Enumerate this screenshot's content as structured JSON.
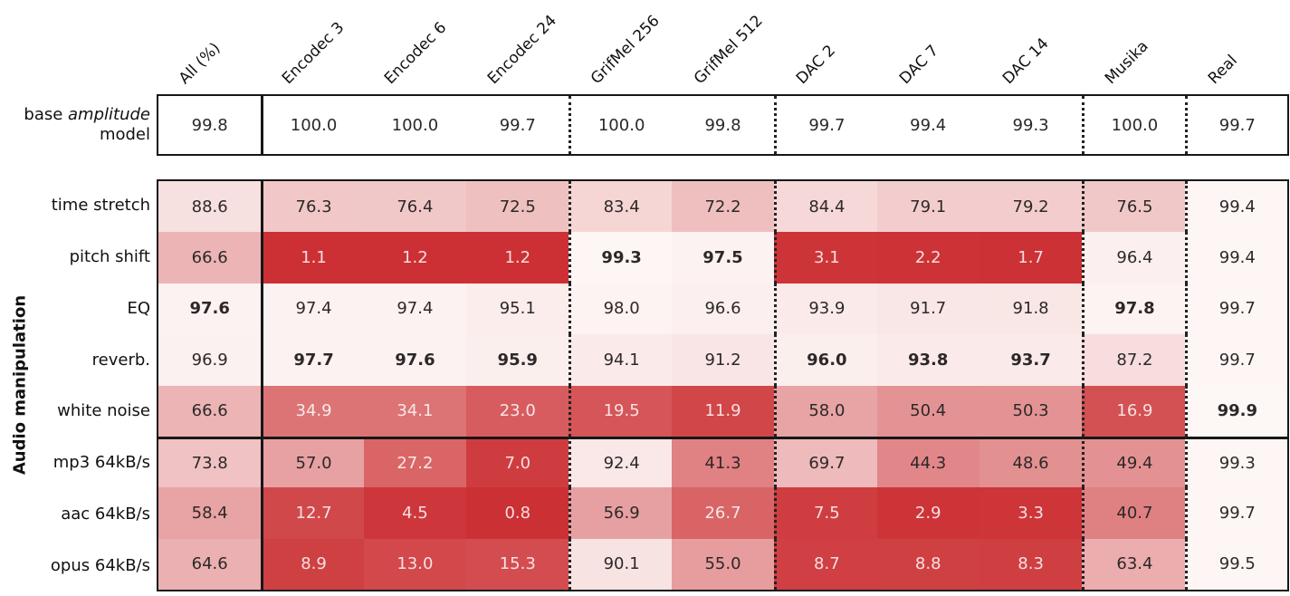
{
  "labels": {
    "base_line1_normal": "base ",
    "base_line1_italic": "amplitude",
    "base_line2": "model",
    "ylabel": "Audio manipulation"
  },
  "colors": {
    "cmap_high": "#fdf7f6",
    "cmap_low": "#cb2e32",
    "border": "#171717",
    "text_dark": "#2d2828",
    "text_light": "rgba(255,255,255,0.84)"
  },
  "chart_data": {
    "type": "heatmap",
    "title": "",
    "xlabel": "",
    "ylabel": "Audio manipulation",
    "value_range": [
      0,
      100
    ],
    "legend": "none",
    "columns": [
      "All (%)",
      "Encodec 3",
      "Encodec 6",
      "Encodec 24",
      "GrifMel 256",
      "GrifMel 512",
      "DAC 2",
      "DAC 7",
      "DAC 14",
      "Musika",
      "Real"
    ],
    "solid_before_cols": [
      1
    ],
    "dotted_before_cols": [
      4,
      6,
      9,
      10
    ],
    "hline_before_row": 5,
    "base_model": {
      "label": "base amplitude model",
      "values": [
        99.8,
        100.0,
        100.0,
        99.7,
        100.0,
        99.8,
        99.7,
        99.4,
        99.3,
        100.0,
        99.7
      ],
      "bold_cols": []
    },
    "rows": [
      {
        "label": "time stretch",
        "values": [
          88.6,
          76.3,
          76.4,
          72.5,
          83.4,
          72.2,
          84.4,
          79.1,
          79.2,
          76.5,
          99.4
        ],
        "bold_cols": []
      },
      {
        "label": "pitch shift",
        "values": [
          66.6,
          1.1,
          1.2,
          1.2,
          99.3,
          97.5,
          3.1,
          2.2,
          1.7,
          96.4,
          99.4
        ],
        "bold_cols": [
          4,
          5
        ]
      },
      {
        "label": "EQ",
        "values": [
          97.6,
          97.4,
          97.4,
          95.1,
          98.0,
          96.6,
          93.9,
          91.7,
          91.8,
          97.8,
          99.7
        ],
        "bold_cols": [
          0,
          9
        ]
      },
      {
        "label": "reverb.",
        "values": [
          96.9,
          97.7,
          97.6,
          95.9,
          94.1,
          91.2,
          96.0,
          93.8,
          93.7,
          87.2,
          99.7
        ],
        "bold_cols": [
          1,
          2,
          3,
          6,
          7,
          8
        ]
      },
      {
        "label": "white noise",
        "values": [
          66.6,
          34.9,
          34.1,
          23.0,
          19.5,
          11.9,
          58.0,
          50.4,
          50.3,
          16.9,
          99.9
        ],
        "bold_cols": [
          10
        ]
      },
      {
        "label": "mp3 64kB/s",
        "values": [
          73.8,
          57.0,
          27.2,
          7.0,
          92.4,
          41.3,
          69.7,
          44.3,
          48.6,
          49.4,
          99.3
        ],
        "bold_cols": []
      },
      {
        "label": "aac 64kB/s",
        "values": [
          58.4,
          12.7,
          4.5,
          0.8,
          56.9,
          26.7,
          7.5,
          2.9,
          3.3,
          40.7,
          99.7
        ],
        "bold_cols": []
      },
      {
        "label": "opus 64kB/s",
        "values": [
          64.6,
          8.9,
          13.0,
          15.3,
          90.1,
          55.0,
          8.7,
          8.8,
          8.3,
          63.4,
          99.5
        ],
        "bold_cols": []
      }
    ]
  }
}
